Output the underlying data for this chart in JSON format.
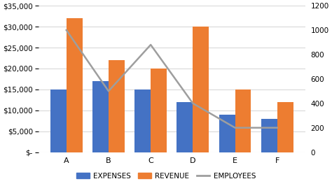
{
  "categories": [
    "A",
    "B",
    "C",
    "D",
    "E",
    "F"
  ],
  "expenses": [
    15000,
    17000,
    15000,
    12000,
    9000,
    8000
  ],
  "revenue": [
    32000,
    22000,
    20000,
    30000,
    15000,
    12000
  ],
  "employees": [
    1000,
    500,
    880,
    400,
    200,
    200
  ],
  "bar_color_expenses": "#4472C4",
  "bar_color_revenue": "#ED7D31",
  "line_color_employees": "#9E9E9E",
  "left_ylim": [
    0,
    35000
  ],
  "right_ylim": [
    0,
    1200
  ],
  "left_yticks": [
    0,
    5000,
    10000,
    15000,
    20000,
    25000,
    30000,
    35000
  ],
  "right_yticks": [
    0,
    200,
    400,
    600,
    800,
    1000,
    1200
  ],
  "background_color": "#ffffff",
  "grid_color": "#d9d9d9",
  "legend_labels": [
    "EXPENSES",
    "REVENUE",
    "EMPLOYEES"
  ],
  "bar_width": 0.38
}
